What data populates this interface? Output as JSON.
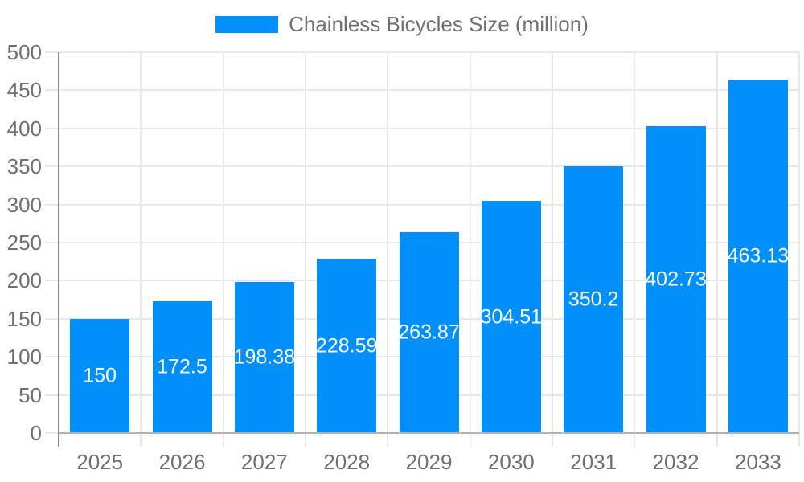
{
  "chart_data": {
    "type": "bar",
    "title": "Chainless Bicycles Size (million)",
    "legend": [
      "Chainless Bicycles Size (million)"
    ],
    "legend_position": "top-center",
    "categories": [
      "2025",
      "2026",
      "2027",
      "2028",
      "2029",
      "2030",
      "2031",
      "2032",
      "2033"
    ],
    "series": [
      {
        "name": "Chainless Bicycles Size (million)",
        "values": [
          150,
          172.5,
          198.38,
          228.59,
          263.87,
          304.51,
          350.2,
          402.73,
          463.13
        ]
      }
    ],
    "bar_value_labels": [
      "150",
      "172.5",
      "198.38",
      "228.59",
      "263.87",
      "304.51",
      "350.2",
      "402.73",
      "463.13"
    ],
    "xlabel": "",
    "ylabel": "",
    "ylim": [
      0,
      500
    ],
    "y_ticks": [
      0,
      50,
      100,
      150,
      200,
      250,
      300,
      350,
      400,
      450,
      500
    ],
    "grid": true,
    "colors": {
      "bar": "#008FFB",
      "bar_label_text": "#FFFFFF",
      "axis_text": "#707070",
      "grid_line": "#E8E8E8",
      "x_axis_line": "#B2B2B2",
      "y_axis_line": "#8C8C8C"
    }
  }
}
